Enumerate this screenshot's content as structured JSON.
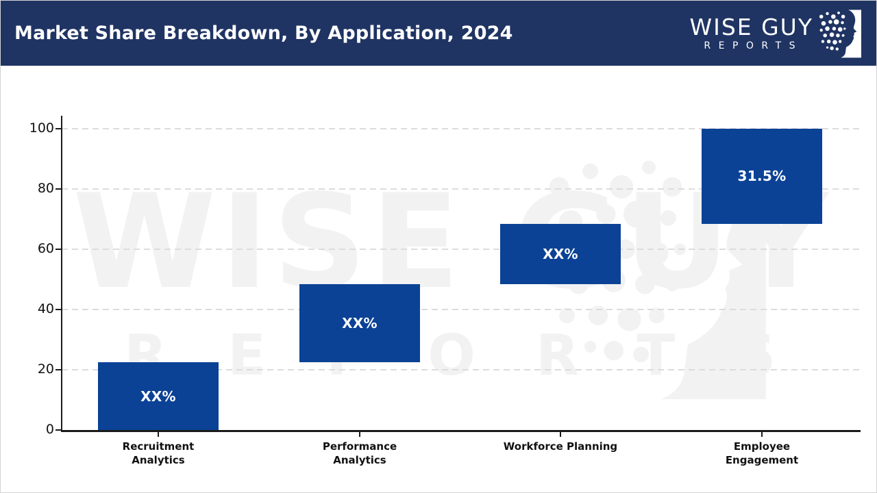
{
  "header": {
    "title": "Market Share Breakdown, By Application, 2024",
    "logo": {
      "primary": "WISE GUY",
      "secondary": "REPORTS"
    }
  },
  "watermark": {
    "primary": "WISE GUY",
    "secondary": "REPORTS"
  },
  "colors": {
    "header_bg": "#1f3463",
    "bar": "#0b4296",
    "gridline": "#dcdcdc",
    "axis": "#1a1a1a",
    "watermark": "#f2f2f2",
    "title_text": "#ffffff"
  },
  "chart_data": {
    "type": "bar",
    "variant": "floating_waterfall",
    "title": "Market Share Breakdown, By Application, 2024",
    "xlabel": "",
    "ylabel": "",
    "ylim": [
      0,
      100
    ],
    "yticks": [
      0,
      20,
      40,
      60,
      80,
      100
    ],
    "grid": "horizontal dashed",
    "legend": "none",
    "categories": [
      "Recruitment Analytics",
      "Performance Analytics",
      "Workforce Planning",
      "Employee Engagement"
    ],
    "bars": [
      {
        "category_lines": [
          "Recruitment",
          "Analytics"
        ],
        "start": 0,
        "end": 22.5,
        "label": "XX%"
      },
      {
        "category_lines": [
          "Performance",
          "Analytics"
        ],
        "start": 22.5,
        "end": 48.5,
        "label": "XX%"
      },
      {
        "category_lines": [
          "Workforce Planning"
        ],
        "start": 48.5,
        "end": 68.5,
        "label": "XX%"
      },
      {
        "category_lines": [
          "Employee",
          "Engagement"
        ],
        "start": 68.5,
        "end": 100,
        "label": "31.5%"
      }
    ]
  }
}
